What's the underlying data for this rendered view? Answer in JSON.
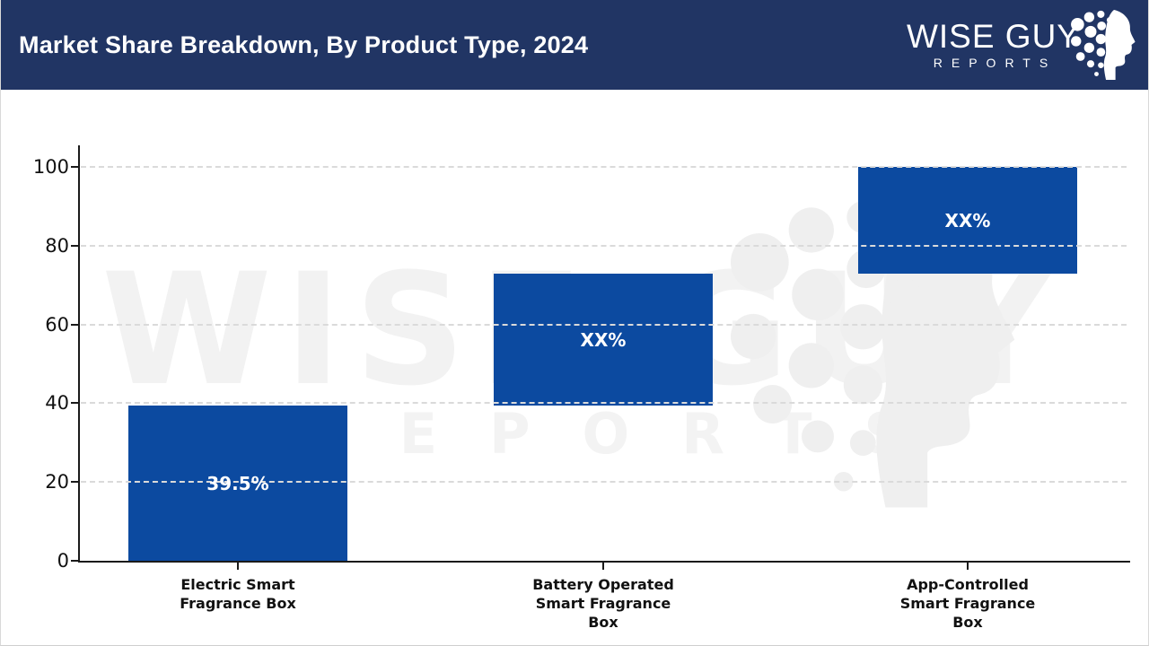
{
  "header": {
    "title": "Market Share Breakdown, By Product Type, 2024",
    "logo": {
      "name": "WISE GUY",
      "tagline": "REPORTS"
    }
  },
  "watermark": {
    "primary": "WISE GUY",
    "secondary": "REPORTS"
  },
  "chart_data": {
    "type": "bar",
    "subtype": "stacked_waterfall_segments",
    "title": "Market Share Breakdown, By Product Type, 2024",
    "categories": [
      [
        "Electric Smart",
        "Fragrance Box"
      ],
      [
        "Battery Operated",
        "Smart Fragrance",
        "Box"
      ],
      [
        "App-Controlled",
        "Smart Fragrance",
        "Box"
      ]
    ],
    "segments": [
      {
        "label": "39.5%",
        "start": 0,
        "end": 39.5
      },
      {
        "label": "XX%",
        "start": 39.5,
        "end": 72.8
      },
      {
        "label": "XX%",
        "start": 72.8,
        "end": 100
      }
    ],
    "yticks": [
      0,
      20,
      40,
      60,
      80,
      100
    ],
    "ylim": [
      0,
      105
    ],
    "xlabel": "",
    "ylabel": "",
    "legend": "none",
    "grid": "horizontal-dashed",
    "colors": {
      "bar": "#0c4aa0",
      "bar_label": "#ffffff",
      "axis": "#1a1a1a",
      "gridline": "#dadada",
      "header_bg": "#213564",
      "watermark": "#f1f1f1"
    }
  }
}
